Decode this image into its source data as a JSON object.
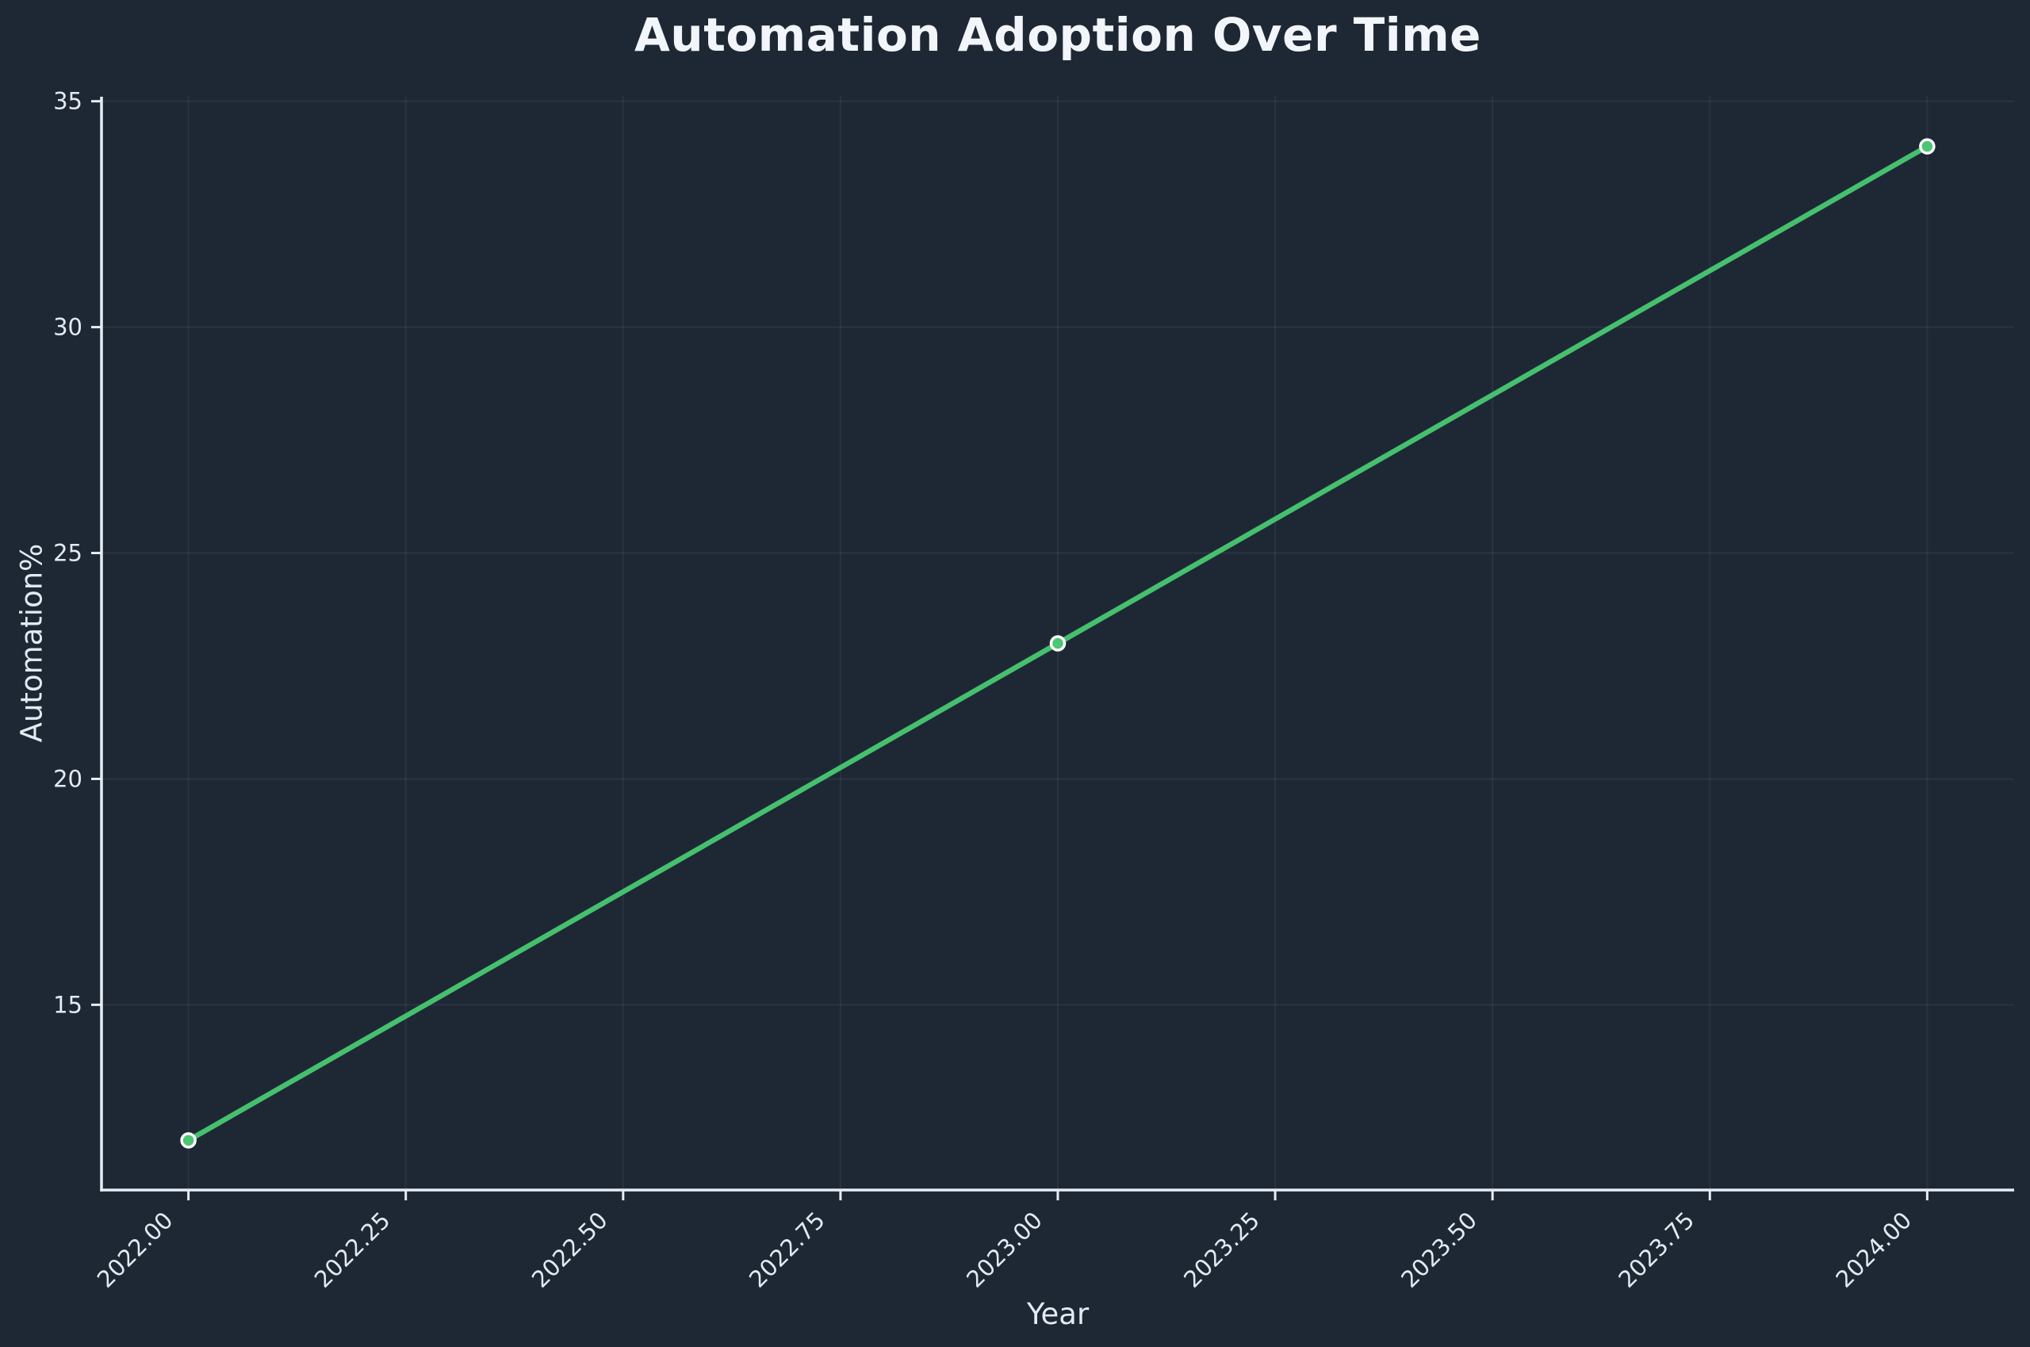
{
  "chart_data": {
    "type": "line",
    "title": "Automation Adoption Over Time",
    "xlabel": "Year",
    "ylabel": "Automation%",
    "x": [
      2022,
      2023,
      2024
    ],
    "series": [
      {
        "name": "Automation%",
        "values": [
          12,
          23,
          34
        ]
      }
    ],
    "xlim": [
      2021.9,
      2024.1
    ],
    "ylim": [
      10.9,
      35.1
    ],
    "xticks": {
      "values": [
        2022.0,
        2022.25,
        2022.5,
        2022.75,
        2023.0,
        2023.25,
        2023.5,
        2023.75,
        2024.0
      ],
      "labels": [
        "2022.00",
        "2022.25",
        "2022.50",
        "2022.75",
        "2023.00",
        "2023.25",
        "2023.50",
        "2023.75",
        "2024.00"
      ],
      "rotation_deg": 45
    },
    "yticks": {
      "values": [
        15,
        20,
        25,
        30,
        35
      ],
      "labels": [
        "15",
        "20",
        "25",
        "30",
        "35"
      ]
    },
    "grid": "both",
    "legend": false,
    "colors": {
      "background": "#1e2835",
      "line": "#46c06e",
      "marker_fill": "#4cc674",
      "marker_edge": "#ffffff",
      "spine": "#e7edf4",
      "tick_text": "#e3eaf2",
      "title_text": "#f2f6fa",
      "grid": "rgba(255,255,255,0.055)"
    }
  }
}
